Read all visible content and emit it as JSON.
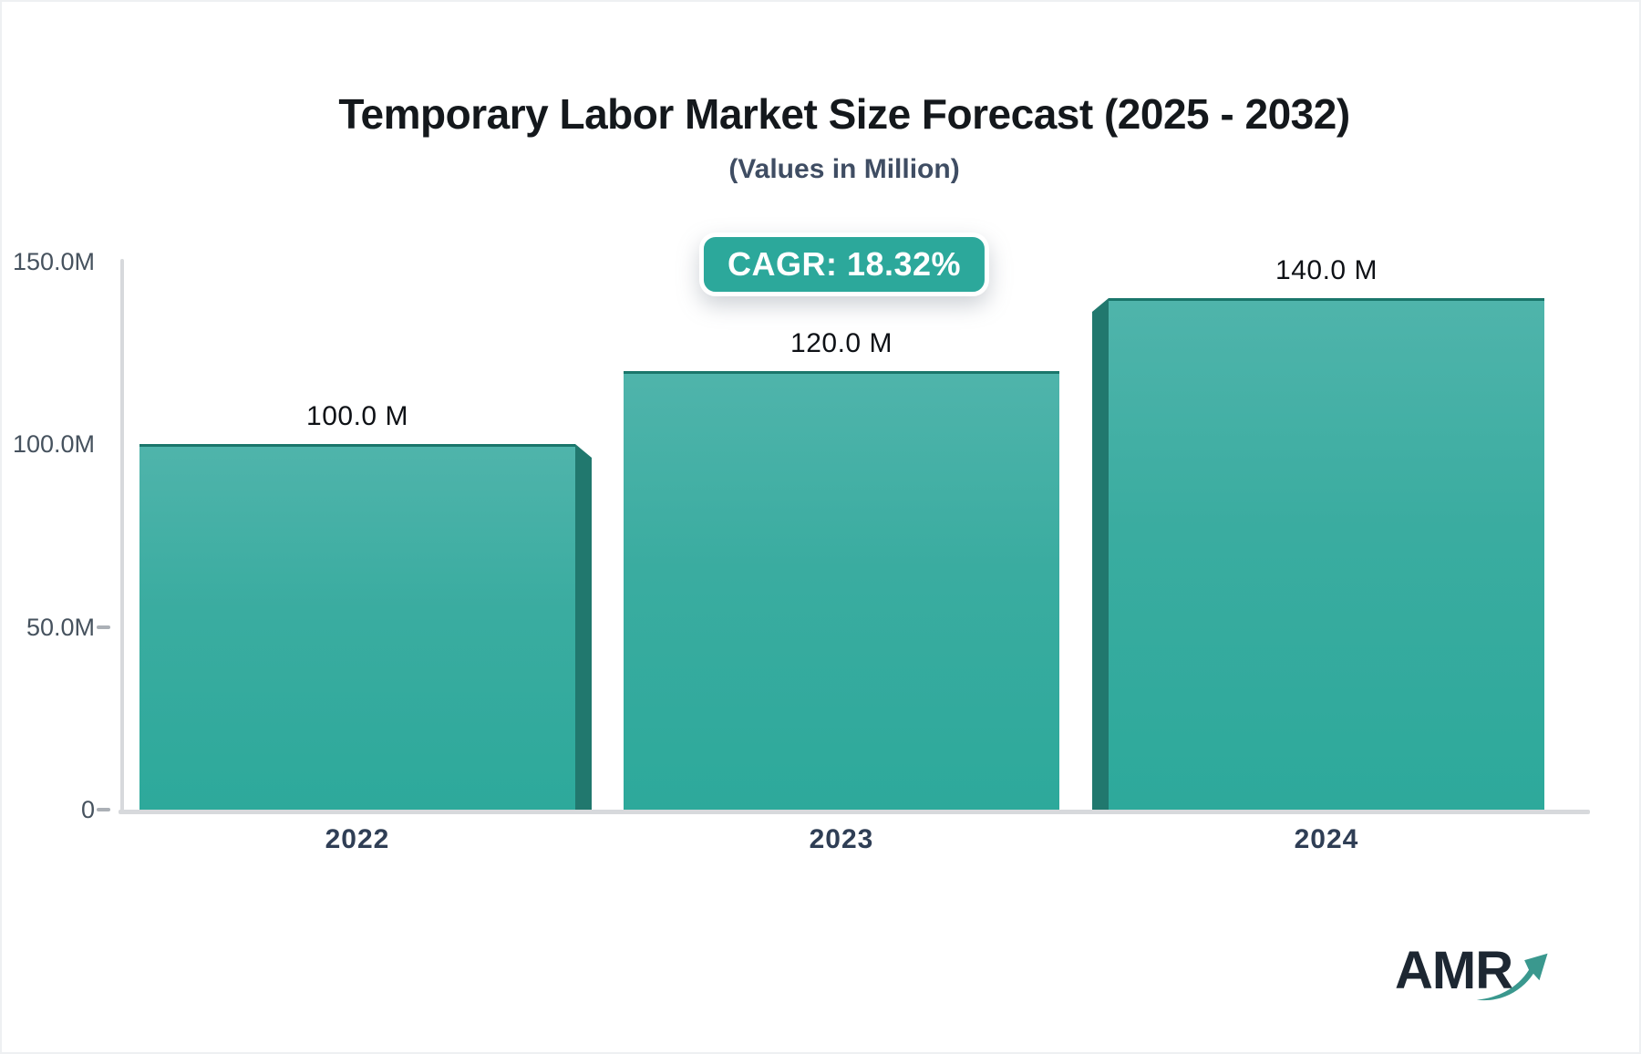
{
  "header": {
    "title": "Temporary Labor Market Size Forecast (2025 - 2032)",
    "subtitle": "(Values in Million)"
  },
  "cagr_badge": {
    "label": "CAGR: 18.32%"
  },
  "logo": {
    "text": "AMR",
    "arrow_icon": "growth-arrow-icon"
  },
  "colors": {
    "bar_gradient_top": "#4fb4ab",
    "bar_gradient_bottom": "#2da99b",
    "bar_side_face": "#21786e",
    "bar_top_edge": "#1a766b",
    "badge_background": "#2ca89b",
    "badge_text": "#ffffff",
    "axis_line": "#d7d9dc",
    "title_text": "#14181c",
    "subtitle_text": "#3f4d63",
    "tick_label_text": "#46525e",
    "category_label_text": "#2f3e55",
    "value_label_text": "#0e1116",
    "logo_text": "#1d2732",
    "logo_arrow": "#3a988e"
  },
  "chart_data": {
    "type": "bar",
    "title": "Temporary Labor Market Size Forecast (2025 - 2032)",
    "subtitle": "(Values in Million)",
    "unit": "Million",
    "categories": [
      "2022",
      "2023",
      "2024"
    ],
    "values": [
      100,
      120,
      140
    ],
    "value_labels": [
      "100.0 M",
      "120.0 M",
      "140.0 M"
    ],
    "ylim": [
      0,
      150
    ],
    "y_ticks": [
      {
        "label": "150.0M",
        "value": 150,
        "dash": false
      },
      {
        "label": "100.0M",
        "value": 100,
        "dash": false
      },
      {
        "label": "50.0M",
        "value": 50,
        "dash": true
      },
      {
        "label": "0",
        "value": 0,
        "dash": true
      }
    ],
    "annotations": [
      "CAGR: 18.32%"
    ],
    "legend": "none",
    "grid": "off",
    "style": "3d-perspective-bars"
  }
}
